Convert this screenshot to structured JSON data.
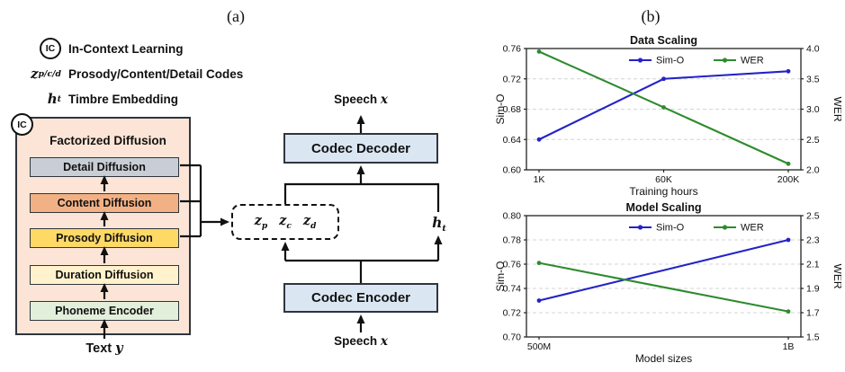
{
  "figure": {
    "caption_a": "(a)",
    "caption_b": "(b)"
  },
  "legend": {
    "row1": {
      "symbol": "IC",
      "label": "In-Context Learning"
    },
    "row2": {
      "base": "z",
      "sub": "p/c/d",
      "label": "Prosody/Content/Detail Codes"
    },
    "row3": {
      "base": "h",
      "sub": "t",
      "label": "Timbre Embedding"
    }
  },
  "diagram": {
    "ic_badge": "IC",
    "panel_title": "Factorized Diffusion",
    "panel_bg": "#fce5d6",
    "border_color": "#2f353d",
    "blocks": [
      {
        "label": "Detail Diffusion",
        "color": "#c9ced6"
      },
      {
        "label": "Content Diffusion",
        "color": "#f2b184"
      },
      {
        "label": "Prosody Diffusion",
        "color": "#ffd966"
      },
      {
        "label": "Duration Diffusion",
        "color": "#fff2cc"
      },
      {
        "label": "Phoneme Encoder",
        "color": "#e2efda"
      }
    ],
    "text_input": {
      "word": "Text",
      "var": "y"
    },
    "speech_top": {
      "word": "Speech",
      "var": "x"
    },
    "speech_bottom": {
      "word": "Speech",
      "var": "x"
    },
    "codes": [
      {
        "base": "z",
        "sub": "p"
      },
      {
        "base": "z",
        "sub": "c"
      },
      {
        "base": "z",
        "sub": "d"
      }
    ],
    "timbre": {
      "base": "h",
      "sub": "t"
    },
    "codec_decoder": "Codec Decoder",
    "codec_encoder": "Codec Encoder",
    "codec_bg": "#dbe6f3"
  },
  "chart_data": [
    {
      "type": "line",
      "title": "Data Scaling",
      "xlabel": "Training hours",
      "ylabel_left": "Sim-O",
      "ylabel_right": "WER",
      "categories": [
        "1K",
        "60K",
        "200K"
      ],
      "series": [
        {
          "name": "Sim-O",
          "axis": "left",
          "color": "#2323c8",
          "values": [
            0.64,
            0.72,
            0.73
          ]
        },
        {
          "name": "WER",
          "axis": "right",
          "color": "#2e8b2e",
          "values": [
            3.95,
            3.03,
            2.1
          ]
        }
      ],
      "ylim_left": [
        0.6,
        0.76
      ],
      "yticks_left": [
        "0.60",
        "0.64",
        "0.68",
        "0.72",
        "0.76"
      ],
      "ylim_right": [
        2.0,
        4.0
      ],
      "yticks_right": [
        "2.0",
        "2.5",
        "3.0",
        "3.5",
        "4.0"
      ],
      "grid": true,
      "legend_position": "top-right-inside"
    },
    {
      "type": "line",
      "title": "Model Scaling",
      "xlabel": "Model sizes",
      "ylabel_left": "Sim-O",
      "ylabel_right": "WER",
      "categories": [
        "500M",
        "1B"
      ],
      "series": [
        {
          "name": "Sim-O",
          "axis": "left",
          "color": "#2323c8",
          "values": [
            0.73,
            0.78
          ]
        },
        {
          "name": "WER",
          "axis": "right",
          "color": "#2e8b2e",
          "values": [
            2.11,
            1.71
          ]
        }
      ],
      "ylim_left": [
        0.7,
        0.8
      ],
      "yticks_left": [
        "0.70",
        "0.72",
        "0.74",
        "0.76",
        "0.78",
        "0.80"
      ],
      "ylim_right": [
        1.5,
        2.5
      ],
      "yticks_right": [
        "1.5",
        "1.7",
        "1.9",
        "2.1",
        "2.3",
        "2.5"
      ],
      "grid": true,
      "legend_position": "top-right-inside"
    }
  ]
}
